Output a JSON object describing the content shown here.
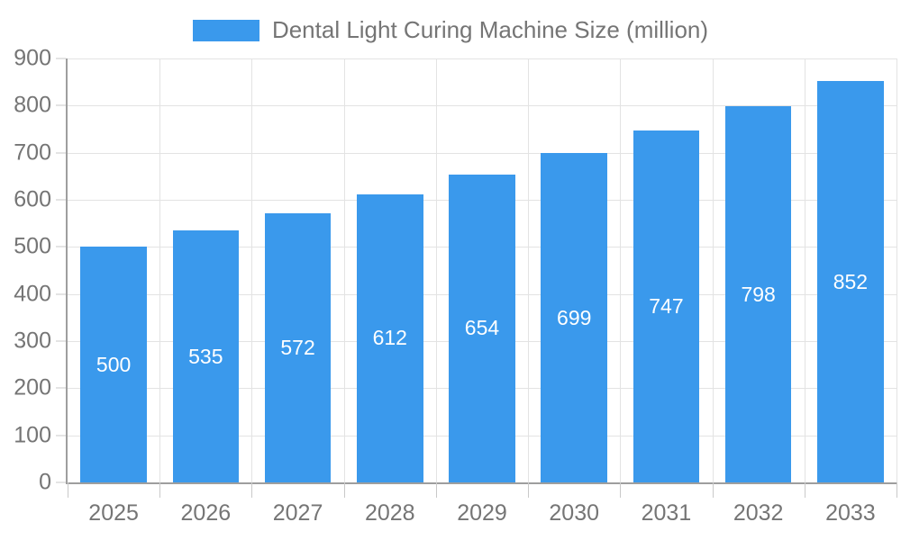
{
  "legend": {
    "label": "Dental Light Curing Machine Size (million)"
  },
  "chart_data": {
    "type": "bar",
    "title": "Dental Light Curing Machine Size (million)",
    "categories": [
      "2025",
      "2026",
      "2027",
      "2028",
      "2029",
      "2030",
      "2031",
      "2032",
      "2033"
    ],
    "values": [
      500,
      535,
      572,
      612,
      654,
      699,
      747,
      798,
      852
    ],
    "xlabel": "",
    "ylabel": "",
    "ylim": [
      0,
      900
    ],
    "ytick_step": 100,
    "yticks": [
      0,
      100,
      200,
      300,
      400,
      500,
      600,
      700,
      800,
      900
    ],
    "grid": true,
    "legend_position": "top",
    "value_labels": "inside-center",
    "colors": {
      "bar": "#3A99EC",
      "value_label": "#ffffff",
      "axis_text": "#757575",
      "gridline": "#e3e3e3",
      "tick": "#c9c9c9",
      "axis_line": "#9e9e9e",
      "background": "#ffffff"
    }
  }
}
